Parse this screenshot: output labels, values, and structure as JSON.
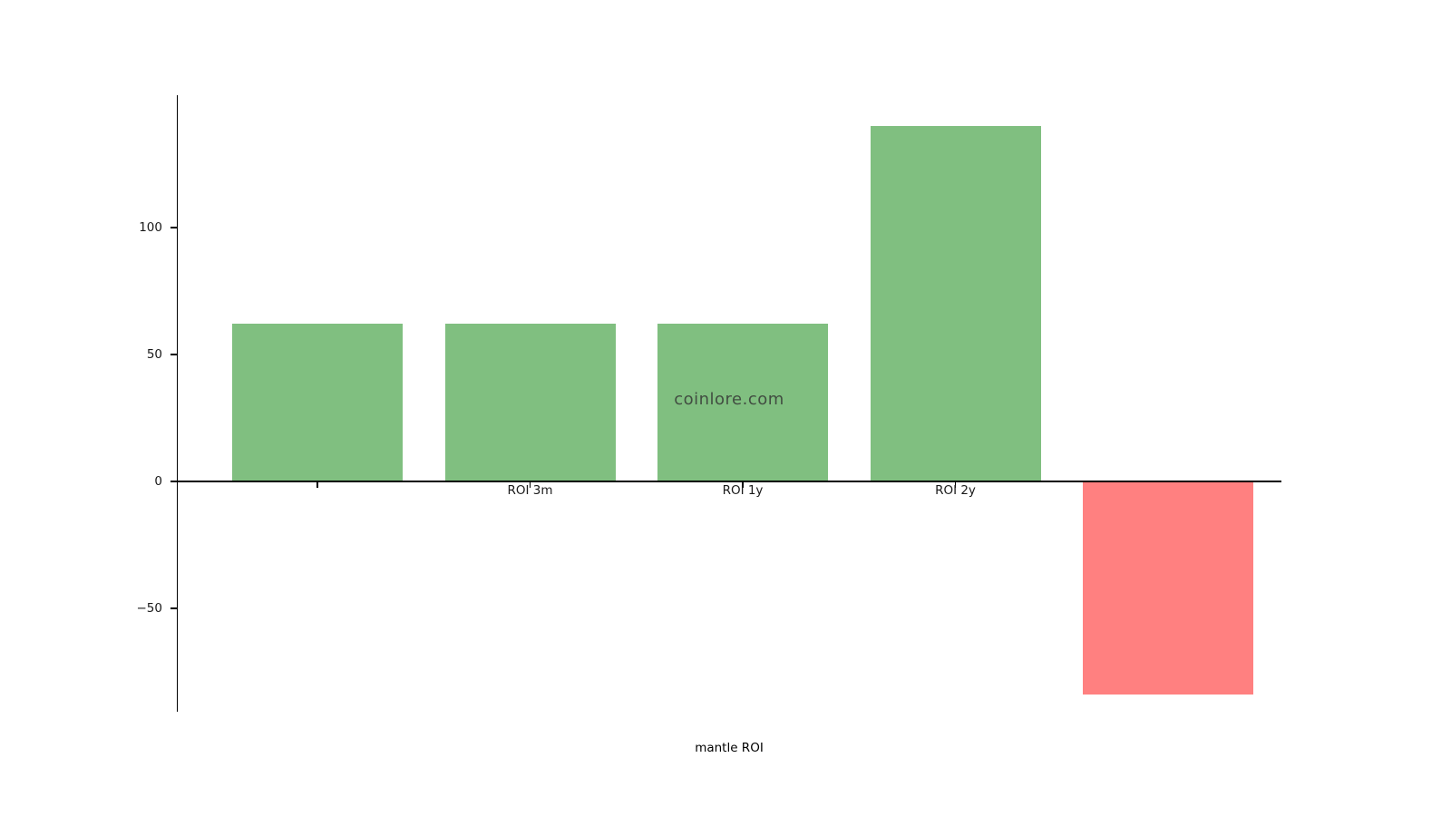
{
  "page": {
    "background": "#ffffff"
  },
  "chart_data": {
    "type": "bar",
    "title": "",
    "xlabel": "mantle ROI",
    "ylabel": "",
    "categories": [
      "",
      "ROI 3m",
      "ROI 1y",
      "ROI 2y",
      ""
    ],
    "values": [
      62,
      62,
      62,
      140,
      -84
    ],
    "yticks": {
      "values": [
        100,
        50,
        0,
        -50
      ],
      "labels": [
        "100",
        "50",
        "0",
        "−50"
      ]
    },
    "ylim": [
      -91,
      152
    ],
    "grid": false,
    "legend": "none",
    "bar_colors": {
      "positive": "#80bf80",
      "negative": "#ff8080"
    },
    "axis_color": "#000000",
    "text_color": "#1a1a1a",
    "watermark": "coinlore.com"
  }
}
